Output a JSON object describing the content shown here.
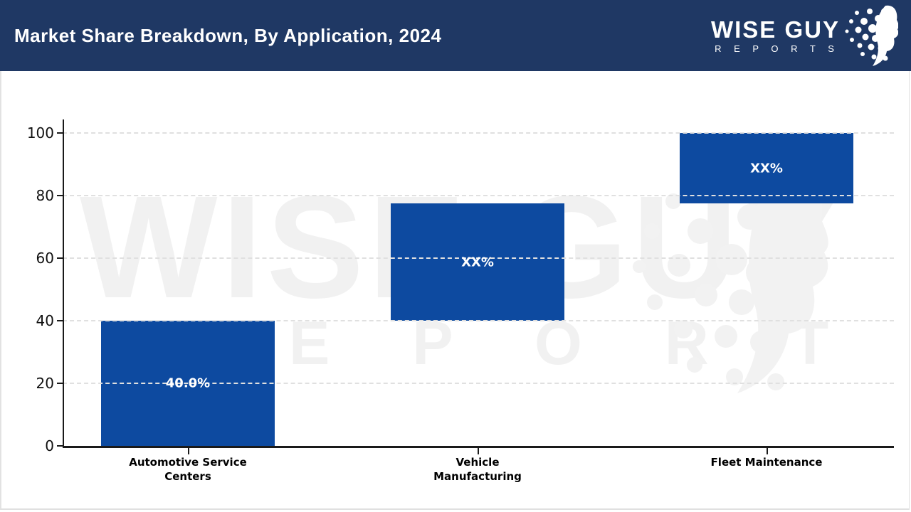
{
  "header": {
    "title": "Market Share Breakdown, By Application, 2024",
    "logo": {
      "line1": "WISE GUY",
      "line2": "R E P O R T S"
    }
  },
  "watermark": {
    "line1": "WISE GUY",
    "line2": "R E P O R T S"
  },
  "colors": {
    "header_bg": "#1f3864",
    "bar_fill": "#0d4aa0",
    "bar_label_text": "#ffffff",
    "gridline": "#e0e0e0",
    "axis": "#1a1a1a",
    "watermark": "#f1f1f1"
  },
  "chart_data": {
    "type": "bar",
    "subtype": "stacked-waterfall",
    "title": "Market Share Breakdown, By Application, 2024",
    "categories": [
      "Automotive Service Centers",
      "Vehicle Manufacturing",
      "Fleet Maintenance"
    ],
    "category_lines": [
      [
        "Automotive Service",
        "Centers"
      ],
      [
        "Vehicle",
        "Manufacturing"
      ],
      [
        "Fleet Maintenance"
      ]
    ],
    "segments": [
      {
        "category": "Automotive Service Centers",
        "start": 0,
        "end": 40,
        "value_label": "40.0%"
      },
      {
        "category": "Vehicle Manufacturing",
        "start": 40,
        "end": 77.5,
        "value_label": "XX%"
      },
      {
        "category": "Fleet Maintenance",
        "start": 77.5,
        "end": 100,
        "value_label": "XX%"
      }
    ],
    "yticks": [
      0,
      20,
      40,
      60,
      80,
      100
    ],
    "ylim": [
      0,
      105
    ],
    "xlabel": "",
    "ylabel": "",
    "grid": "horizontal dashed",
    "legend": "none"
  }
}
